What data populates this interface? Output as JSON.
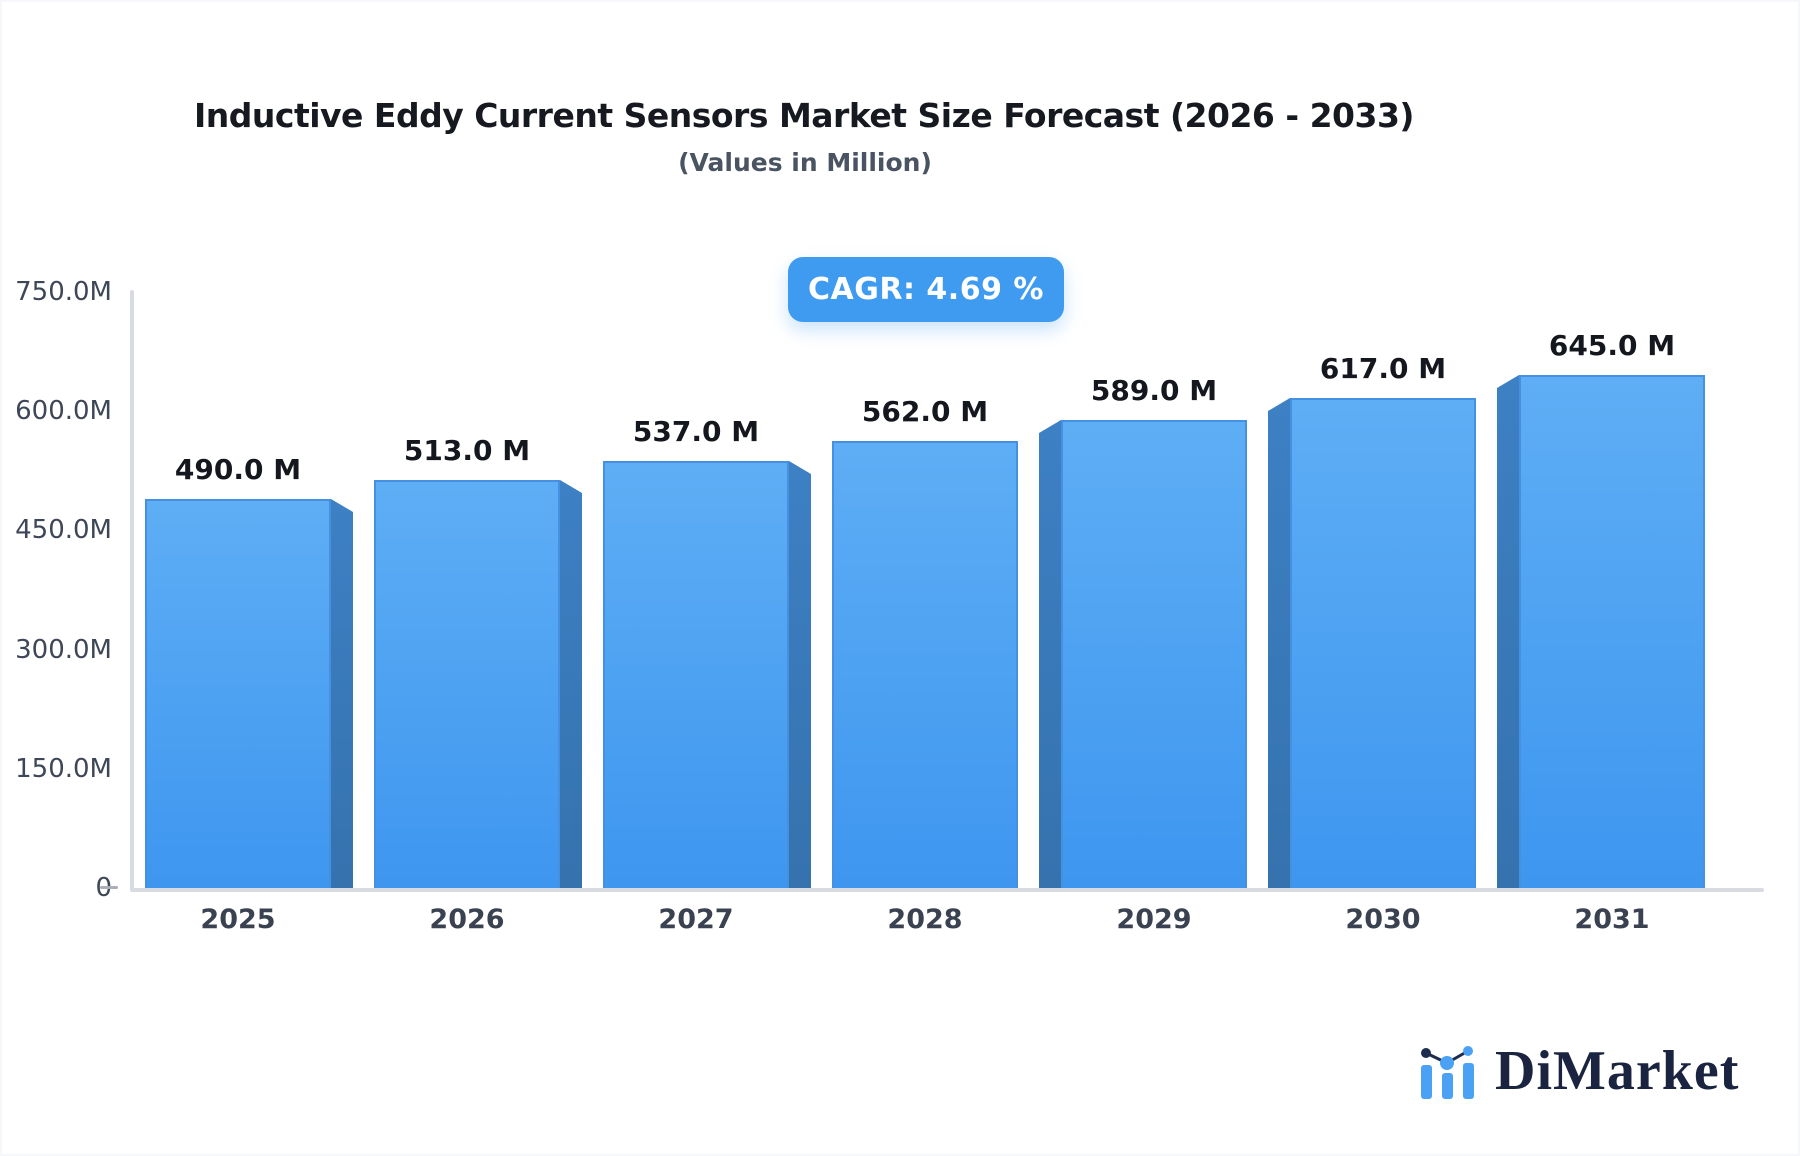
{
  "header": {
    "title": "Inductive Eddy Current Sensors Market Size Forecast (2026 - 2033)",
    "subtitle": "(Values in Million)",
    "cagr_label": "CAGR: 4.69 %"
  },
  "chart_data": {
    "type": "bar",
    "title": "Inductive Eddy Current Sensors Market Size Forecast (2026 - 2033)",
    "subtitle": "(Values in Million)",
    "categories": [
      "2025",
      "2026",
      "2027",
      "2028",
      "2029",
      "2030",
      "2031"
    ],
    "values": [
      490,
      513,
      537,
      562,
      589,
      617,
      645
    ],
    "value_labels": [
      "490.0 M",
      "513.0 M",
      "537.0 M",
      "562.0 M",
      "589.0 M",
      "617.0 M",
      "645.0 M"
    ],
    "unit": "Million",
    "cagr_percent": 4.69,
    "xlabel": "",
    "ylabel": "",
    "ylim": [
      0,
      750
    ],
    "yticks": [
      750,
      600,
      450,
      300,
      150,
      0
    ],
    "ytick_labels": [
      "750.0M",
      "600.0M",
      "450.0M",
      "300.0M",
      "150.0M",
      "0"
    ],
    "grid": false,
    "legend": false,
    "bar_style": "3d-extruded-blue"
  },
  "branding": {
    "logo_text": "DiMarket"
  },
  "colors": {
    "bar_top": "#5eaef5",
    "bar_bottom": "#3e96ef",
    "bar_edge": "#4690e2",
    "bar_side": "#3d80c4",
    "bar_side_dark": "#3572ae",
    "accent_blue": "#3e9bf0",
    "axis_line": "#d8dce2",
    "text_dark": "#14171d",
    "logo_navy": "#1e2c4d",
    "logo_blue": "#4ba1f4"
  }
}
